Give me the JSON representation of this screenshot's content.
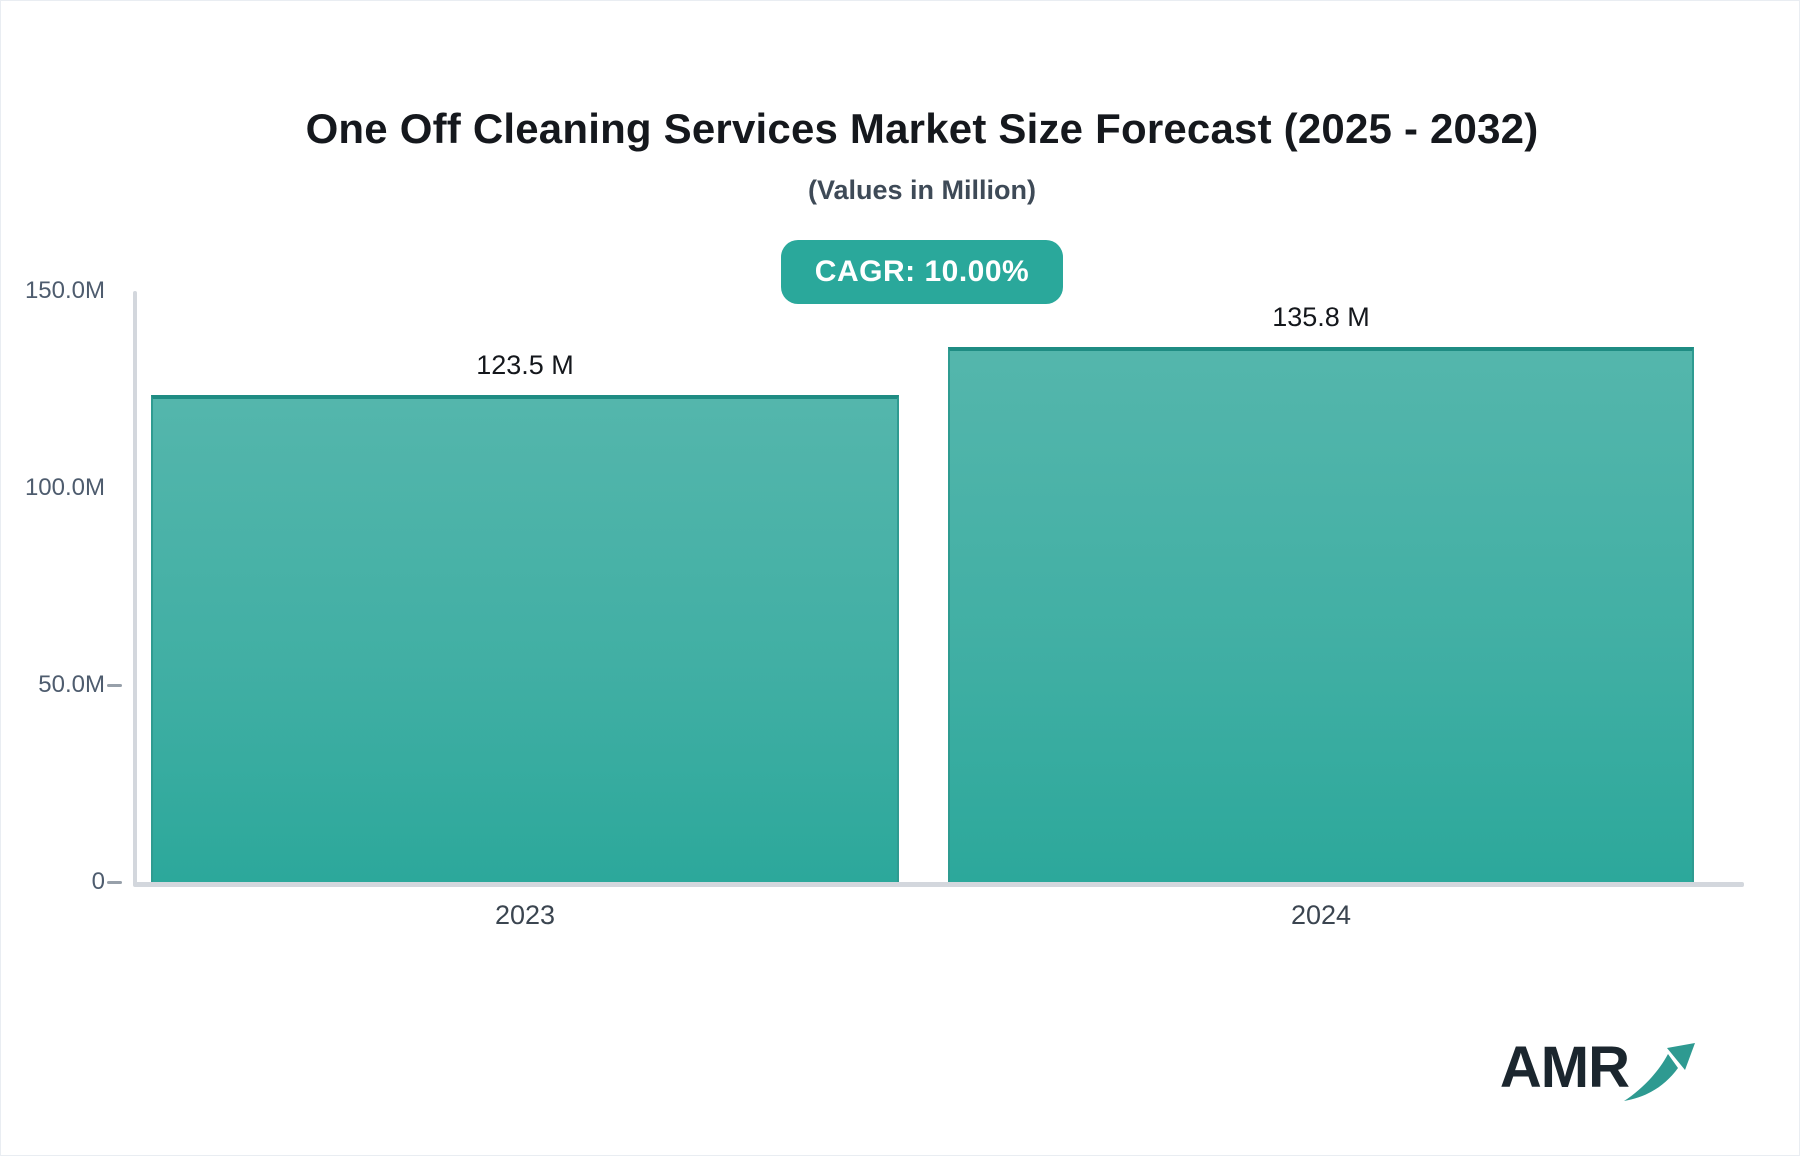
{
  "header": {
    "title": "One Off Cleaning Services Market Size Forecast (2025 - 2032)",
    "subtitle": "(Values in Million)",
    "cagr_badge": "CAGR: 10.00%"
  },
  "chart_data": {
    "type": "bar",
    "title": "One Off Cleaning Services Market Size Forecast (2025 - 2032)",
    "subtitle": "(Values in Million)",
    "unit": "Million",
    "cagr_percent": 10.0,
    "categories": [
      "2023",
      "2024"
    ],
    "values": [
      123.5,
      135.8
    ],
    "bar_labels": [
      "123.5 M",
      "135.8 M"
    ],
    "ylim": [
      0,
      150
    ],
    "yticks": [
      {
        "value": 150,
        "label": "150.0M",
        "dash": false
      },
      {
        "value": 100,
        "label": "100.0M",
        "dash": false
      },
      {
        "value": 50,
        "label": "50.0M",
        "dash": true
      },
      {
        "value": 0,
        "label": "0",
        "dash": true
      }
    ],
    "grid": false,
    "legend": false
  },
  "branding": {
    "logo_text": "AMR"
  },
  "colors": {
    "accent_teal": "#2aa89b",
    "bar_gradient_top": "#54b6ac",
    "bar_gradient_bottom": "#2ca89b",
    "bar_top_border": "#1f8c83",
    "axis_line": "#d3d7dd",
    "tick_dash": "#97a0aa",
    "y_label": "#4e5c6e",
    "x_label": "#3b4550",
    "value_label": "#14171c",
    "title_text": "#15181d",
    "subtitle_text": "#3e4a57",
    "badge_text": "#ffffff",
    "logo_text": "#1b262e",
    "logo_arrow": "#2e9a91"
  }
}
